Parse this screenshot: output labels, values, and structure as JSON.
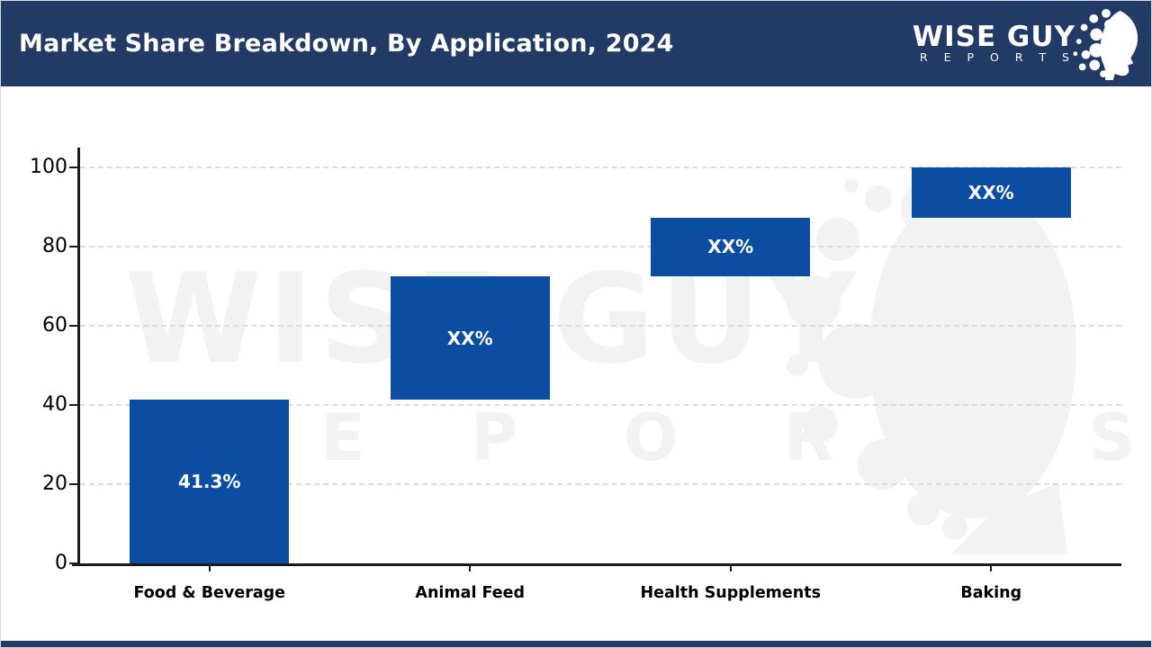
{
  "header": {
    "title": "Market Share Breakdown, By Application, 2024",
    "logo": {
      "line1": "WISE GUY",
      "line2": "R E P O R T S"
    }
  },
  "watermark": {
    "line1": "WISE GUY",
    "line2": "R E P O R T S"
  },
  "chart_data": {
    "type": "bar",
    "subtype": "waterfall",
    "title": "Market Share Breakdown, By Application, 2024",
    "categories": [
      "Food & Beverage",
      "Animal Feed",
      "Health Supplements",
      "Baking"
    ],
    "segments": [
      {
        "category": "Food & Beverage",
        "start": 0,
        "end": 41.3,
        "label": "41.3%"
      },
      {
        "category": "Animal Feed",
        "start": 41.3,
        "end": 72.5,
        "label": "XX%"
      },
      {
        "category": "Health Supplements",
        "start": 72.5,
        "end": 87.3,
        "label": "XX%"
      },
      {
        "category": "Baking",
        "start": 87.3,
        "end": 100,
        "label": "XX%"
      }
    ],
    "yticks": [
      0,
      20,
      40,
      60,
      80,
      100
    ],
    "ylim": [
      0,
      105
    ],
    "xlabel": "",
    "ylabel": "",
    "grid": "horizontal-dashed",
    "legend": "none",
    "colors": {
      "bar": "#0B4DA1",
      "bar_label": "#FFFFFF",
      "header_bg": "#213A66",
      "grid": "#DCDCDC",
      "axis": "#1A1A1A",
      "watermark": "#F2F2F2"
    }
  }
}
